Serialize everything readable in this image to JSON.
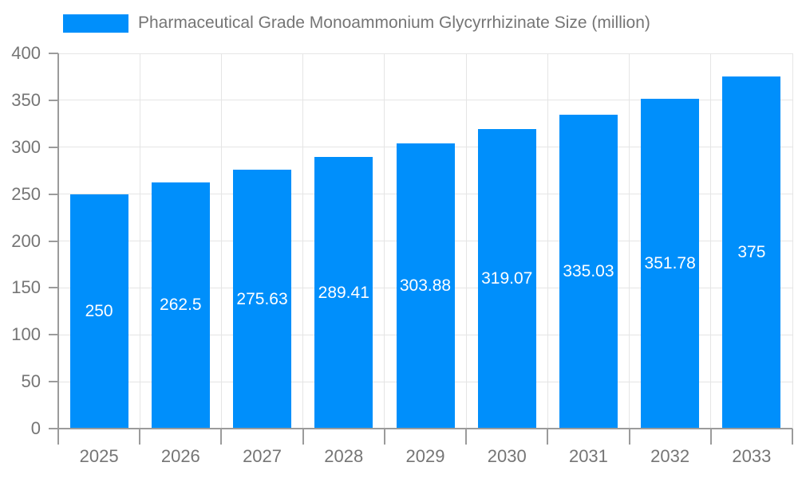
{
  "legend": {
    "label": "Pharmaceutical Grade Monoammonium Glycyrrhizinate Size (million)"
  },
  "chart_data": {
    "type": "bar",
    "title": "Pharmaceutical Grade Monoammonium Glycyrrhizinate Size (million)",
    "series_name": "Pharmaceutical Grade Monoammonium Glycyrrhizinate Size (million)",
    "categories": [
      "2025",
      "2026",
      "2027",
      "2028",
      "2029",
      "2030",
      "2031",
      "2032",
      "2033"
    ],
    "values": [
      250,
      262.5,
      275.63,
      289.41,
      303.88,
      319.07,
      335.03,
      351.78,
      375
    ],
    "value_labels": [
      "250",
      "262.5",
      "275.63",
      "289.41",
      "303.88",
      "319.07",
      "335.03",
      "351.78",
      "375"
    ],
    "xlabel": "",
    "ylabel": "",
    "ylim": [
      0,
      400
    ],
    "yticks": [
      0,
      50,
      100,
      150,
      200,
      250,
      300,
      350,
      400
    ],
    "grid": true,
    "legend_position": "top-left",
    "value_label_position": "center-of-bar",
    "colors": {
      "bar": "#008FFB",
      "grid": "#e5e5e5",
      "axis": "#9b9b9b",
      "tick_label": "#757575",
      "value_label": "#ffffff",
      "background": "#ffffff"
    }
  }
}
